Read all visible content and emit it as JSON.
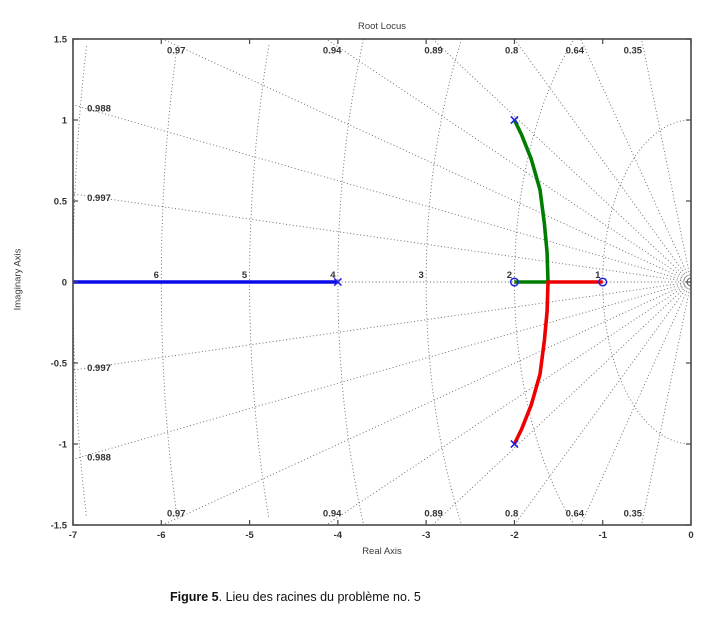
{
  "caption": {
    "label": "Figure 5",
    "text": ". Lieu des racines du problème no. 5"
  },
  "chart_data": {
    "type": "line",
    "subtype": "root-locus",
    "title": "Root Locus",
    "xlabel": "Real Axis",
    "ylabel": "Imaginary Axis",
    "xlim": [
      -7,
      0
    ],
    "ylim": [
      -1.5,
      1.5
    ],
    "xticks": [
      -7,
      -6,
      -5,
      -4,
      -3,
      -2,
      -1,
      0
    ],
    "xtick_labels": [
      "-7",
      "-6",
      "-5",
      "-4",
      "-3",
      "-2",
      "-1",
      "0"
    ],
    "yticks": [
      -1.5,
      -1,
      -0.5,
      0,
      0.5,
      1,
      1.5
    ],
    "ytick_labels": [
      "-1.5",
      "-1",
      "-0.5",
      "0",
      "0.5",
      "1",
      "1.5"
    ],
    "grid": {
      "on": true,
      "damping_ratios": [
        0.35,
        0.64,
        0.8,
        0.89,
        0.94,
        0.97,
        0.988,
        0.997
      ],
      "damping_labels": [
        "0.35",
        "0.64",
        "0.8",
        "0.89",
        "0.94",
        "0.97",
        "0.988",
        "0.997"
      ],
      "natural_frequencies": [
        1,
        2,
        3,
        4,
        5,
        6,
        7
      ],
      "natural_frequency_labels": [
        "1",
        "2",
        "3",
        "4",
        "5",
        "6"
      ],
      "color": "#646464"
    },
    "series": [
      {
        "name": "real-axis-branch",
        "color": "#0a0ae8",
        "points": [
          [
            -7,
            0
          ],
          [
            -4,
            0
          ]
        ]
      },
      {
        "name": "upper-complex-branch",
        "color": "#007d00",
        "points": [
          [
            -2,
            0
          ],
          [
            -1.62,
            0
          ],
          [
            -1.63,
            0.18
          ],
          [
            -1.66,
            0.36
          ],
          [
            -1.71,
            0.57
          ],
          [
            -1.81,
            0.76
          ],
          [
            -1.92,
            0.91
          ],
          [
            -2,
            1
          ]
        ]
      },
      {
        "name": "lower-complex-branch",
        "color": "#ee0000",
        "points": [
          [
            -1,
            0
          ],
          [
            -1.62,
            0
          ],
          [
            -1.63,
            -0.18
          ],
          [
            -1.66,
            -0.36
          ],
          [
            -1.71,
            -0.57
          ],
          [
            -1.81,
            -0.76
          ],
          [
            -1.92,
            -0.91
          ],
          [
            -2,
            -1
          ]
        ]
      }
    ],
    "poles": [
      [
        -4,
        0
      ],
      [
        -2,
        1
      ],
      [
        -2,
        -1
      ]
    ],
    "zeros": [
      [
        -2,
        0
      ],
      [
        -1,
        0
      ]
    ],
    "marker_color": "#2222dd",
    "axes_color": "#474747",
    "text_color": "#333333",
    "legend": "none"
  }
}
